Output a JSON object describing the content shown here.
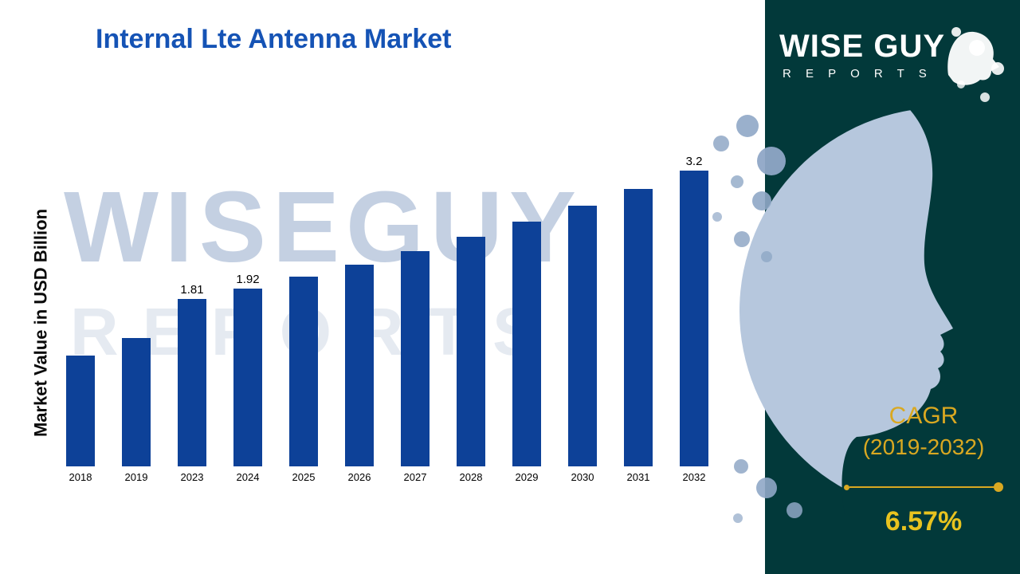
{
  "title": "Internal Lte Antenna Market",
  "y_axis_label": "Market Value in USD Billion",
  "watermark": {
    "line1": "WISEGUY",
    "line2": "REPORTS"
  },
  "logo": {
    "name_line": "WISE GUY",
    "reports_line": "R E P O R T S"
  },
  "cagr": {
    "label": "CAGR",
    "range": "(2019-2032)",
    "value": "6.57%"
  },
  "colors": {
    "title_blue": "#1553b5",
    "bar_blue": "#0d4198",
    "panel_teal": "#02393a",
    "accent_gold": "#d9a821",
    "value_yellow": "#e8c31f",
    "head_circle": "#b6c7dd"
  },
  "chart_data": {
    "type": "bar",
    "title": "Internal Lte Antenna Market",
    "xlabel": "",
    "ylabel": "Market Value in USD Billion",
    "categories": [
      "2018",
      "2019",
      "2023",
      "2024",
      "2025",
      "2026",
      "2027",
      "2028",
      "2029",
      "2030",
      "2031",
      "2032"
    ],
    "values": [
      1.2,
      1.39,
      1.81,
      1.92,
      2.05,
      2.18,
      2.33,
      2.48,
      2.65,
      2.82,
      3.0,
      3.2
    ],
    "bar_labels": [
      "",
      "",
      "1.81",
      "1.92",
      "",
      "",
      "",
      "",
      "",
      "",
      "",
      "3.2"
    ],
    "ylim": [
      0,
      3.5
    ],
    "grid": false,
    "legend": false
  }
}
